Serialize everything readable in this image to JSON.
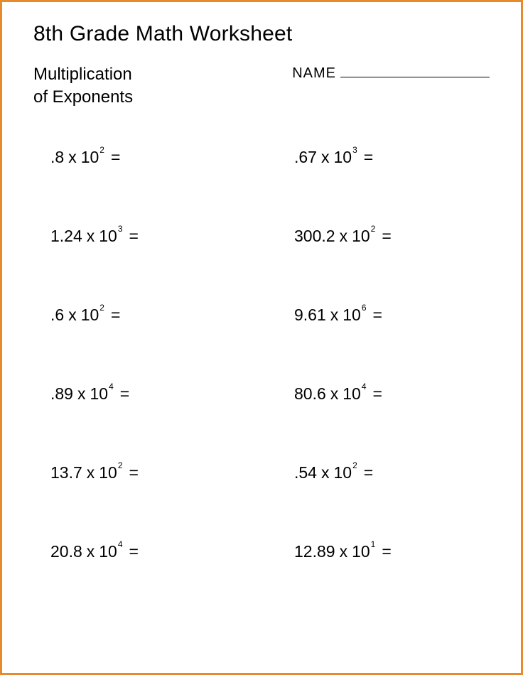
{
  "border_color": "#e88a2a",
  "background_color": "#ffffff",
  "text_color": "#000000",
  "title": "8th Grade Math Worksheet",
  "subtitle_line1": "Multiplication",
  "subtitle_line2": "of Exponents",
  "name_label": "NAME",
  "times_symbol": "x",
  "equals_symbol": "=",
  "base_symbol": "10",
  "fontsize_title": 30,
  "fontsize_subtitle": 24,
  "fontsize_problem": 23,
  "fontsize_exponent": 12,
  "problems": {
    "left": [
      {
        "coef": ".8",
        "exp": "2"
      },
      {
        "coef": "1.24",
        "exp": "3"
      },
      {
        "coef": ".6",
        "exp": "2"
      },
      {
        "coef": ".89",
        "exp": "4"
      },
      {
        "coef": "13.7",
        "exp": "2"
      },
      {
        "coef": "20.8",
        "exp": "4"
      }
    ],
    "right": [
      {
        "coef": ".67",
        "exp": "3"
      },
      {
        "coef": "300.2",
        "exp": "2"
      },
      {
        "coef": "9.61",
        "exp": "6"
      },
      {
        "coef": "80.6",
        "exp": "4"
      },
      {
        "coef": ".54 ",
        "exp": "2"
      },
      {
        "coef": "12.89",
        "exp": "1"
      }
    ]
  }
}
